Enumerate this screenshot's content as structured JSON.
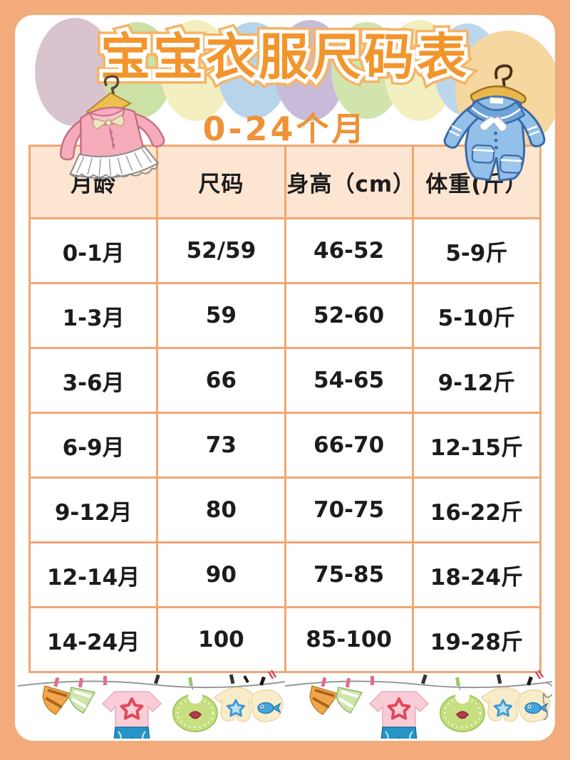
{
  "chart_data": {
    "type": "table",
    "title": "宝宝衣服尺码表",
    "subtitle": "0-24个月",
    "columns": [
      "月龄",
      "尺码",
      "身高（cm）",
      "体重(斤）"
    ],
    "rows": [
      [
        "0-1月",
        "52/59",
        "46-52",
        "5-9斤"
      ],
      [
        "1-3月",
        "59",
        "52-60",
        "5-10斤"
      ],
      [
        "3-6月",
        "66",
        "54-65",
        "9-12斤"
      ],
      [
        "6-9月",
        "73",
        "66-70",
        "12-15斤"
      ],
      [
        "9-12月",
        "80",
        "70-75",
        "16-22斤"
      ],
      [
        "12-14月",
        "90",
        "75-85",
        "18-24斤"
      ],
      [
        "14-24月",
        "100",
        "85-100",
        "19-28斤"
      ]
    ]
  },
  "header": {
    "title": "宝宝衣服尺码表",
    "subtitle": "0-24个月"
  },
  "decor": {
    "icons": {
      "top_left": "pink-dress-on-hanger-icon",
      "top_right": "blue-sailor-romper-on-hanger-icon",
      "bottom": "baby-clothesline-icon"
    },
    "circle_colors": [
      "#d9c3cf",
      "#cbe1a6",
      "#f3efc0",
      "#b7d4ea",
      "#c8bbda",
      "#d2e4ae",
      "#f3efc0",
      "#bcd7ec",
      "#f6d7a0"
    ]
  },
  "colors": {
    "outer_background": "#f3ab7b",
    "card_background": "#ffffff",
    "table_border": "#f2a673",
    "header_row_background": "#fce5d1",
    "title_text": "#f2952d",
    "subtitle_text": "#ee9237",
    "cell_text": "#1c1c1c"
  }
}
